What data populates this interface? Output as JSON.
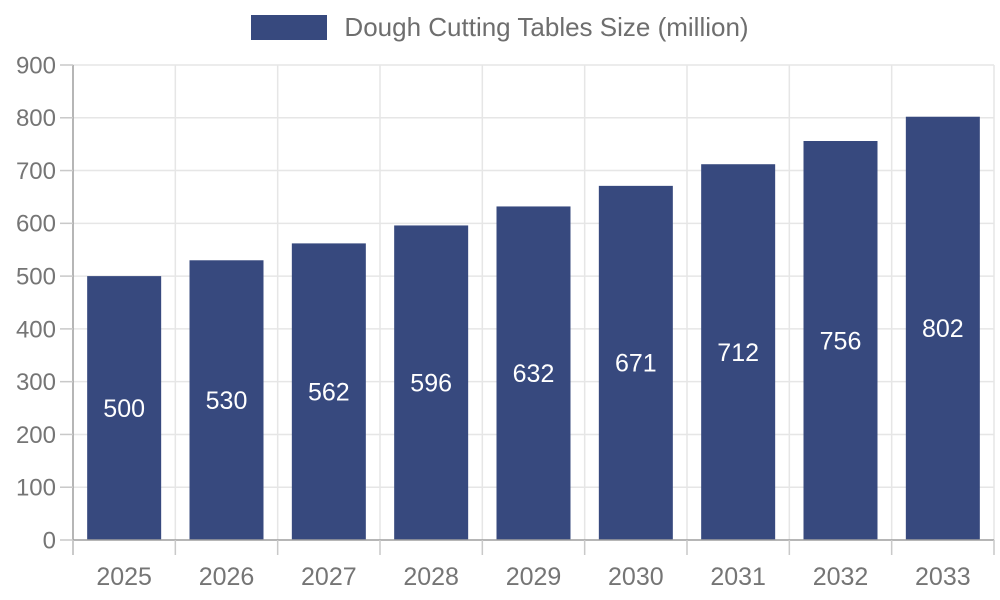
{
  "chart_data": {
    "type": "bar",
    "title": "Dough Cutting Tables Size (million)",
    "categories": [
      "2025",
      "2026",
      "2027",
      "2028",
      "2029",
      "2030",
      "2031",
      "2032",
      "2033"
    ],
    "values": [
      500,
      530,
      562,
      596,
      632,
      671,
      712,
      756,
      802
    ],
    "xlabel": "",
    "ylabel": "",
    "ylim": [
      0,
      900
    ],
    "ytick_interval": 100,
    "ytick_labels": [
      "0",
      "100",
      "200",
      "300",
      "400",
      "500",
      "600",
      "700",
      "800",
      "900"
    ],
    "grid": true,
    "legend_position": "top",
    "legend_entries": [
      "Dough Cutting Tables Size (million)"
    ],
    "value_labels_shown": true
  },
  "colors": {
    "bar": "#37497e",
    "grid_line": "#e6e6e6",
    "axis_line": "#9e9e9e",
    "tick_line": "#c9c9c9",
    "axis_text": "#757575",
    "legend_text": "#6e6e6e",
    "value_text": "#ffffff",
    "background": "#ffffff"
  }
}
